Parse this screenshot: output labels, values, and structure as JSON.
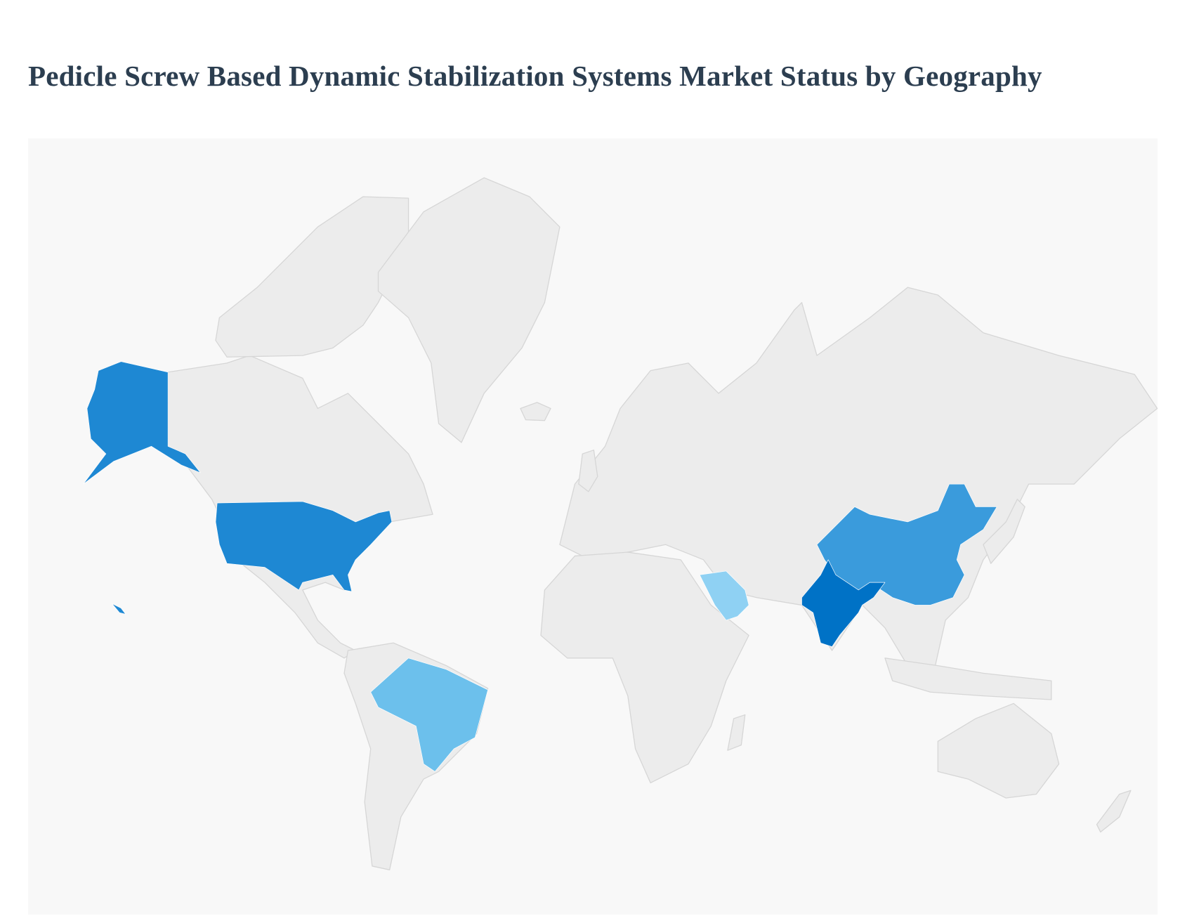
{
  "title": "Pedicle Screw Based Dynamic Stabilization Systems Market Status by Geography",
  "chart_data": {
    "type": "choropleth-map",
    "title": "Pedicle Screw Based Dynamic Stabilization Systems Market Status by Geography",
    "base_land_color": "#ececec",
    "border_color": "#d6d6d6",
    "background_color": "#f8f8f8",
    "legend": "none",
    "highlighted_regions": [
      {
        "country": "United States",
        "color": "#1e88d3"
      },
      {
        "country": "China",
        "color": "#3a9bdc"
      },
      {
        "country": "India",
        "color": "#0072c6"
      },
      {
        "country": "Brazil",
        "color": "#6cc0ec"
      },
      {
        "country": "Saudi Arabia",
        "color": "#8fd1f3"
      }
    ]
  }
}
